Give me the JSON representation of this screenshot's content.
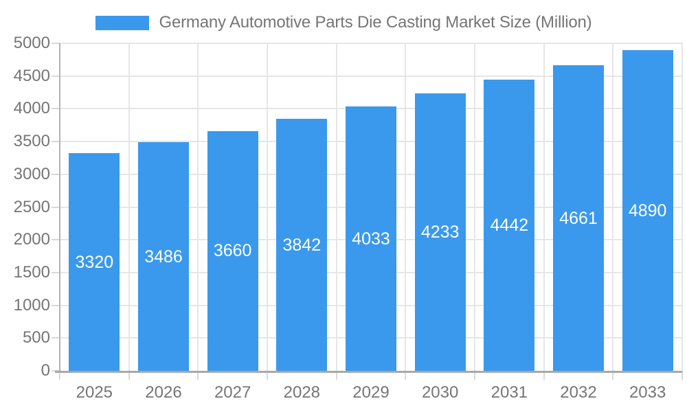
{
  "legend": {
    "label": "Germany Automotive Parts Die Casting Market Size (Million)",
    "swatch_color": "#3a99ec",
    "position": "top-center"
  },
  "chart_data": {
    "type": "bar",
    "title": "Germany Automotive Parts Die Casting Market Size (Million)",
    "categories": [
      "2025",
      "2026",
      "2027",
      "2028",
      "2029",
      "2030",
      "2031",
      "2032",
      "2033"
    ],
    "values": [
      3320,
      3486,
      3660,
      3842,
      4033,
      4233,
      4442,
      4661,
      4890
    ],
    "series": [
      {
        "name": "Germany Automotive Parts Die Casting Market Size (Million)",
        "values": [
          3320,
          3486,
          3660,
          3842,
          4033,
          4233,
          4442,
          4661,
          4890
        ]
      }
    ],
    "xlabel": "",
    "ylabel": "",
    "ylim": [
      0,
      5000
    ],
    "y_ticks": [
      0,
      500,
      1000,
      1500,
      2000,
      2500,
      3000,
      3500,
      4000,
      4500,
      5000
    ],
    "grid": true,
    "legend_position": "top",
    "bar_labels_shown": true,
    "colors": {
      "bar": "#3a99ec",
      "bar_label": "#ffffff",
      "text": "#757575",
      "grid": "#e6e6e6",
      "tick": "#d9d9d9",
      "axis": "#b0b0b0",
      "background": "#ffffff"
    }
  }
}
